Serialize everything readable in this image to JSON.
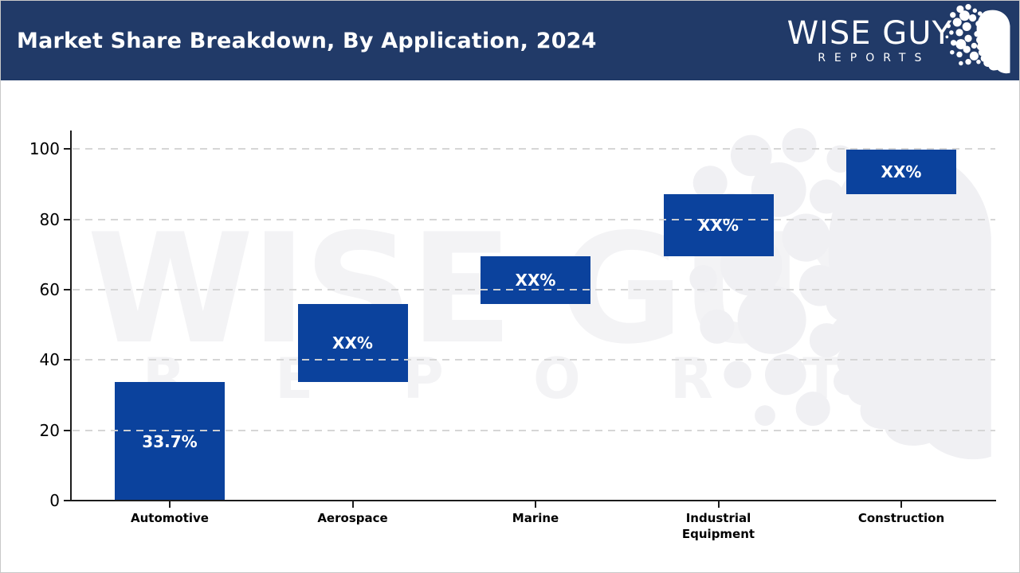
{
  "header": {
    "title": "Market Share Breakdown, By Application, 2024",
    "logo": {
      "line1": "WISE GUY",
      "line2": "REPORTS"
    }
  },
  "watermark": {
    "line1": "WISE GUY",
    "line2": "R E P O R T S"
  },
  "colors": {
    "header_bg": "#213a68",
    "bar": "#0b429d",
    "axis": "#1c1c1c",
    "grid": "#d4d4d4",
    "bar_label": "#ffffff",
    "watermark": "#f3f3f5"
  },
  "chart_data": {
    "type": "bar",
    "subtype": "waterfall",
    "title": "Market Share Breakdown, By Application, 2024",
    "categories": [
      "Automotive",
      "Aerospace",
      "Marine",
      "Industrial Equipment",
      "Construction"
    ],
    "segments": [
      {
        "category": "Automotive",
        "start": 0,
        "end": 33.7,
        "label": "33.7%"
      },
      {
        "category": "Aerospace",
        "start": 33.7,
        "end": 55.9,
        "label": "XX%"
      },
      {
        "category": "Marine",
        "start": 55.9,
        "end": 69.5,
        "label": "XX%"
      },
      {
        "category": "Industrial Equipment",
        "start": 69.5,
        "end": 87.3,
        "label": "XX%"
      },
      {
        "category": "Construction",
        "start": 87.3,
        "end": 99.8,
        "label": "XX%"
      }
    ],
    "xlabel": "",
    "ylabel": "",
    "ylim": [
      0,
      100
    ],
    "yticks": [
      0,
      20,
      40,
      60,
      80,
      100
    ],
    "grid": true,
    "grid_style": "dashed",
    "legend": false
  }
}
